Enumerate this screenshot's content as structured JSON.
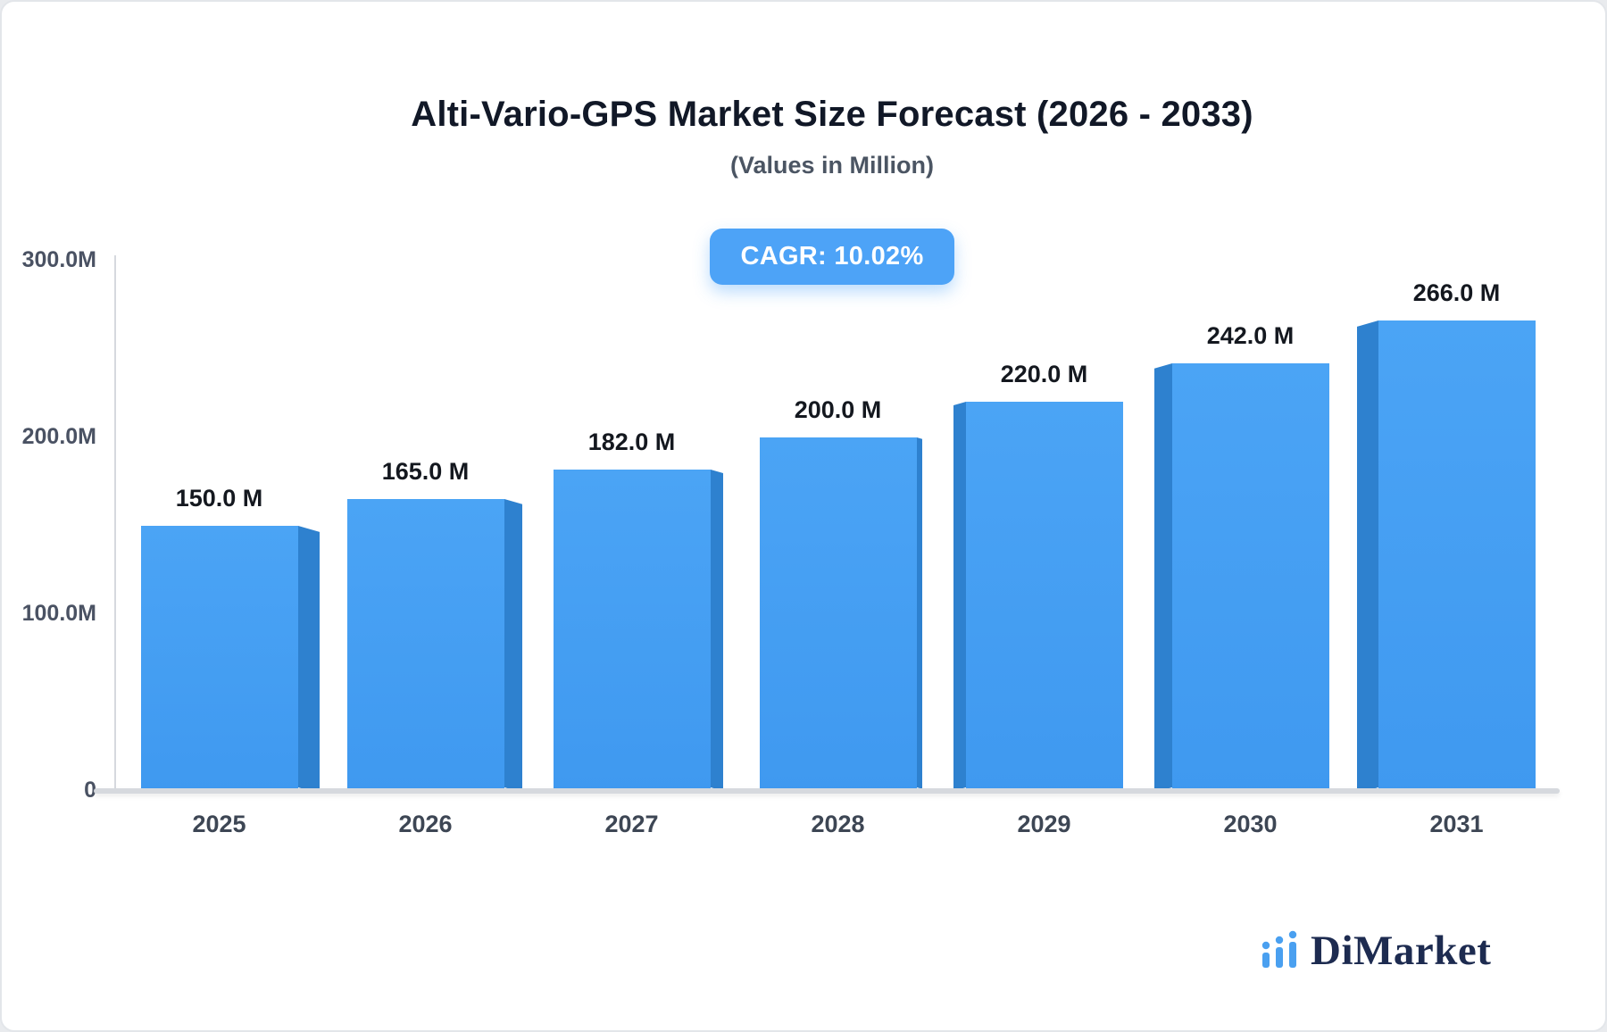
{
  "chart_data": {
    "type": "bar",
    "title": "Alti-Vario-GPS Market Size Forecast (2026 - 2033)",
    "subtitle": "(Values in Million)",
    "badge": "CAGR: 10.02%",
    "categories": [
      "2025",
      "2026",
      "2027",
      "2028",
      "2029",
      "2030",
      "2031"
    ],
    "values": [
      150,
      165,
      182,
      200,
      220,
      242,
      266
    ],
    "value_labels": [
      "150.0 M",
      "165.0 M",
      "182.0 M",
      "200.0 M",
      "220.0 M",
      "242.0 M",
      "266.0 M"
    ],
    "xlabel": "",
    "ylabel": "",
    "ylim": [
      0,
      300
    ],
    "yticks": [
      {
        "value": 300,
        "label": "300.0M"
      },
      {
        "value": 200,
        "label": "200.0M"
      },
      {
        "value": 100,
        "label": "100.0M"
      },
      {
        "value": 0,
        "label": "0"
      }
    ],
    "grid": false,
    "legend": false,
    "colors": {
      "bar_front_top": "#4ba4f5",
      "bar_front_bottom": "#3f99f0",
      "bar_side": "#2e81cf",
      "axis": "#d6d9de",
      "title_text": "#111827",
      "subtitle_text": "#4b5563",
      "tick_text": "#4a5263",
      "value_text": "#14181f",
      "year_text": "#3d4654",
      "badge_bg": "#4da3f7",
      "badge_text": "#ffffff"
    }
  },
  "footer": {
    "logo_text": "DiMarket",
    "logo_icon": "bar-chart-icon",
    "logo_text_color": "#1d2b50",
    "logo_icon_color": "#4aa0f0"
  }
}
